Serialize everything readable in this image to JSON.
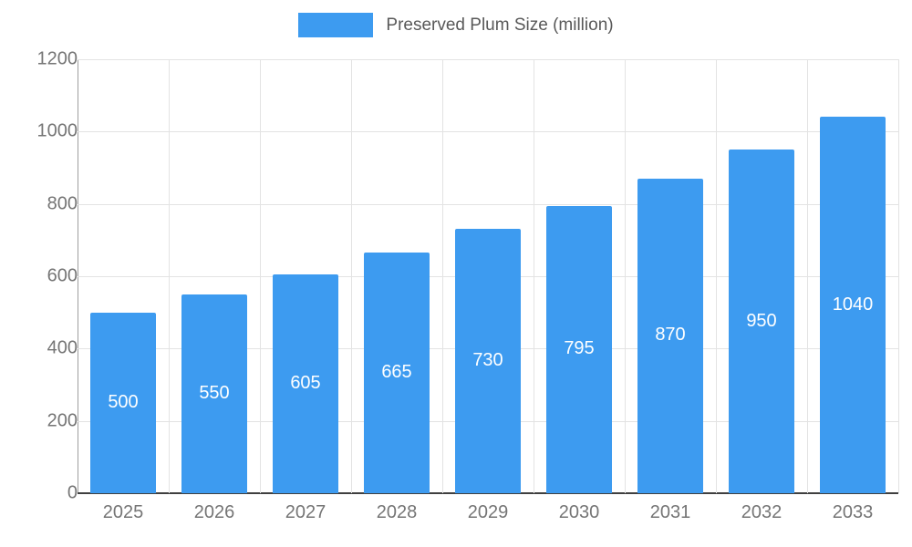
{
  "legend": {
    "label": "Preserved Plum Size (million)"
  },
  "chart_data": {
    "type": "bar",
    "title": "Preserved Plum Size (million)",
    "categories": [
      "2025",
      "2026",
      "2027",
      "2028",
      "2029",
      "2030",
      "2031",
      "2032",
      "2033"
    ],
    "values": [
      500,
      550,
      605,
      665,
      730,
      795,
      870,
      950,
      1040
    ],
    "xlabel": "",
    "ylabel": "",
    "ylim": [
      0,
      1200
    ],
    "yticks": [
      0,
      200,
      400,
      600,
      800,
      1000,
      1200
    ],
    "grid": "horizontal-and-vertical",
    "legend_position": "top-center",
    "value_labels": "inside-center",
    "colors": {
      "bar": "#3d9bf0",
      "grid": "#e3e3e3",
      "y_axis_line": "#9e9e9e",
      "x_axis_line": "#3f3f3f",
      "tick_text": "#757575",
      "legend_text": "#595959",
      "value_label_text": "#ffffff",
      "background": "#ffffff"
    }
  }
}
